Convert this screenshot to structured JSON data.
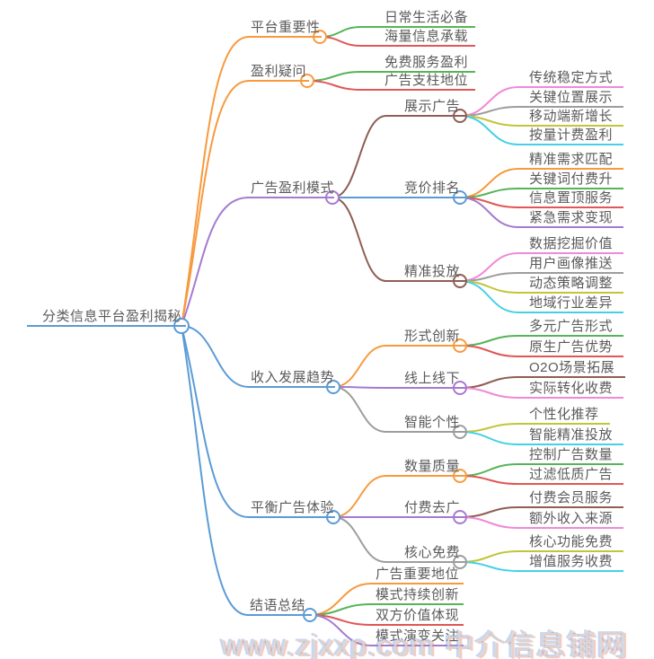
{
  "watermark": {
    "text": "www.zjxxp.com 中介信息铺网"
  },
  "palette": {
    "blue": "#5b9bd5",
    "orange": "#f79a3e",
    "purple": "#a57ad0",
    "brown": "#8f5d55",
    "green": "#55b457",
    "red": "#e15656",
    "pink": "#ef8ad6",
    "gray": "#9d9d9d",
    "olive": "#c2c53a",
    "cyan": "#45d0e6",
    "text": "#5a5a5a",
    "node_fill": "#ffffff"
  },
  "mindmap": {
    "name": "root-topic",
    "label": "分类信息平台盈利揭秘",
    "color": "blue",
    "children": [
      {
        "name": "platform-importance",
        "label": "平台重要性",
        "color": "orange",
        "children": [
          {
            "name": "daily-life-essential",
            "label": "日常生活必备",
            "color": "green"
          },
          {
            "name": "massive-info-carrier",
            "label": "海量信息承载",
            "color": "red"
          }
        ]
      },
      {
        "name": "profit-question",
        "label": "盈利疑问",
        "color": "orange",
        "children": [
          {
            "name": "free-service-profit",
            "label": "免费服务盈利",
            "color": "green"
          },
          {
            "name": "ad-pillar-status",
            "label": "广告支柱地位",
            "color": "red"
          }
        ]
      },
      {
        "name": "ad-profit-model",
        "label": "广告盈利模式",
        "color": "purple",
        "children": [
          {
            "name": "display-ads",
            "label": "展示广告",
            "color": "brown",
            "children": [
              {
                "name": "traditional-stable",
                "label": "传统稳定方式",
                "color": "pink"
              },
              {
                "name": "key-position-display",
                "label": "关键位置展示",
                "color": "gray"
              },
              {
                "name": "mobile-new-growth",
                "label": "移动端新增长",
                "color": "olive"
              },
              {
                "name": "pay-per-volume",
                "label": "按量计费盈利",
                "color": "cyan"
              }
            ]
          },
          {
            "name": "bidding-rank",
            "label": "竞价排名",
            "color": "blue",
            "children": [
              {
                "name": "precise-demand-match",
                "label": "精准需求匹配",
                "color": "orange"
              },
              {
                "name": "keyword-paid-boost",
                "label": "关键词付费升",
                "color": "green"
              },
              {
                "name": "info-top-service",
                "label": "信息置顶服务",
                "color": "red"
              },
              {
                "name": "urgent-demand-monetize",
                "label": "紧急需求变现",
                "color": "purple"
              }
            ]
          },
          {
            "name": "precise-targeting",
            "label": "精准投放",
            "color": "brown",
            "children": [
              {
                "name": "data-mining-value",
                "label": "数据挖掘价值",
                "color": "pink"
              },
              {
                "name": "user-profile-push",
                "label": "用户画像推送",
                "color": "gray"
              },
              {
                "name": "dynamic-strategy-adjust",
                "label": "动态策略调整",
                "color": "olive"
              },
              {
                "name": "region-industry-diff",
                "label": "地域行业差异",
                "color": "cyan"
              }
            ]
          }
        ]
      },
      {
        "name": "revenue-trend",
        "label": "收入发展趋势",
        "color": "blue",
        "children": [
          {
            "name": "format-innovation",
            "label": "形式创新",
            "color": "orange",
            "children": [
              {
                "name": "multi-ad-formats",
                "label": "多元广告形式",
                "color": "green"
              },
              {
                "name": "native-ad-advantage",
                "label": "原生广告优势",
                "color": "red"
              }
            ]
          },
          {
            "name": "online-offline",
            "label": "线上线下",
            "color": "purple",
            "children": [
              {
                "name": "o2o-scene-expand",
                "label": "O2O场景拓展",
                "color": "brown"
              },
              {
                "name": "actual-conversion-fee",
                "label": "实际转化收费",
                "color": "pink"
              }
            ]
          },
          {
            "name": "smart-personalization",
            "label": "智能个性",
            "color": "gray",
            "children": [
              {
                "name": "personalized-recommend",
                "label": "个性化推荐",
                "color": "olive"
              },
              {
                "name": "smart-precise-targeting",
                "label": "智能精准投放",
                "color": "cyan"
              }
            ]
          }
        ]
      },
      {
        "name": "balance-ad-experience",
        "label": "平衡广告体验",
        "color": "blue",
        "children": [
          {
            "name": "quantity-quality",
            "label": "数量质量",
            "color": "orange",
            "children": [
              {
                "name": "control-ad-quantity",
                "label": "控制广告数量",
                "color": "green"
              },
              {
                "name": "filter-low-quality-ads",
                "label": "过滤低质广告",
                "color": "red"
              }
            ]
          },
          {
            "name": "paid-ad-removal",
            "label": "付费去广",
            "color": "purple",
            "children": [
              {
                "name": "paid-membership-service",
                "label": "付费会员服务",
                "color": "brown"
              },
              {
                "name": "extra-income-source",
                "label": "额外收入来源",
                "color": "pink"
              }
            ]
          },
          {
            "name": "core-free",
            "label": "核心免费",
            "color": "gray",
            "children": [
              {
                "name": "core-function-free",
                "label": "核心功能免费",
                "color": "olive"
              },
              {
                "name": "value-added-fee",
                "label": "增值服务收费",
                "color": "cyan"
              }
            ]
          }
        ]
      },
      {
        "name": "conclusion",
        "label": "结语总结",
        "color": "blue",
        "children": [
          {
            "name": "ad-important-status",
            "label": "广告重要地位",
            "color": "orange"
          },
          {
            "name": "model-continuous-innovation",
            "label": "模式持续创新",
            "color": "green"
          },
          {
            "name": "mutual-value-reflection",
            "label": "双方价值体现",
            "color": "red"
          },
          {
            "name": "model-evolution-watch",
            "label": "模式演变关注",
            "color": "purple"
          }
        ]
      }
    ]
  }
}
